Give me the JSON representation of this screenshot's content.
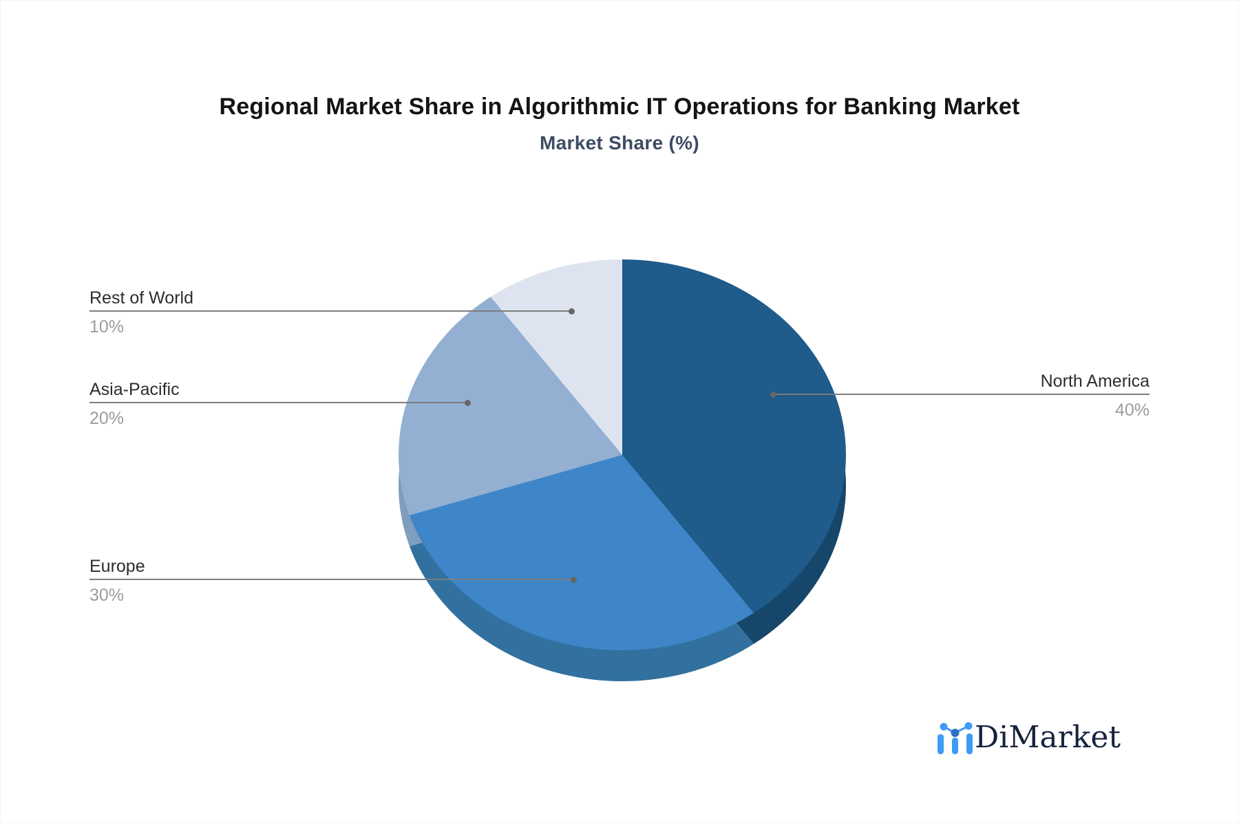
{
  "header": {
    "title": "Regional Market Share in Algorithmic IT Operations for Banking Market",
    "subtitle": "Market Share (%)"
  },
  "chart_data": {
    "type": "pie",
    "title": "Regional Market Share in Algorithmic IT Operations for Banking Market",
    "subtitle": "Market Share (%)",
    "unit": "%",
    "effect": "3d",
    "start_angle_deg": 0,
    "direction": "clockwise",
    "legend": "none",
    "label_style": "callout-lines-with-percent",
    "slices": [
      {
        "label": "North America",
        "value": 40,
        "display": "40%",
        "color": "#1f5b8b",
        "side_color": "#164669"
      },
      {
        "label": "Europe",
        "value": 30,
        "display": "30%",
        "color": "#3e86c7",
        "side_color": "#32719f"
      },
      {
        "label": "Asia-Pacific",
        "value": 20,
        "display": "20%",
        "color": "#93b0d3",
        "side_color": "#7f9dbf"
      },
      {
        "label": "Rest of World",
        "value": 10,
        "display": "10%",
        "color": "#dde4ef",
        "side_color": "#bcc8d9"
      }
    ]
  },
  "colors": {
    "title": "#141414",
    "subtitle": "#3e4c63",
    "callout_label": "#2d2d2d",
    "callout_percent": "#9c9c9c",
    "callout_line": "#7d7d7d",
    "background": "#ffffff"
  },
  "logo": {
    "text": "DiMarket",
    "icon": "bar-line-chart-icon",
    "text_color": "#16233e",
    "icon_color": "#3f9bf3"
  }
}
